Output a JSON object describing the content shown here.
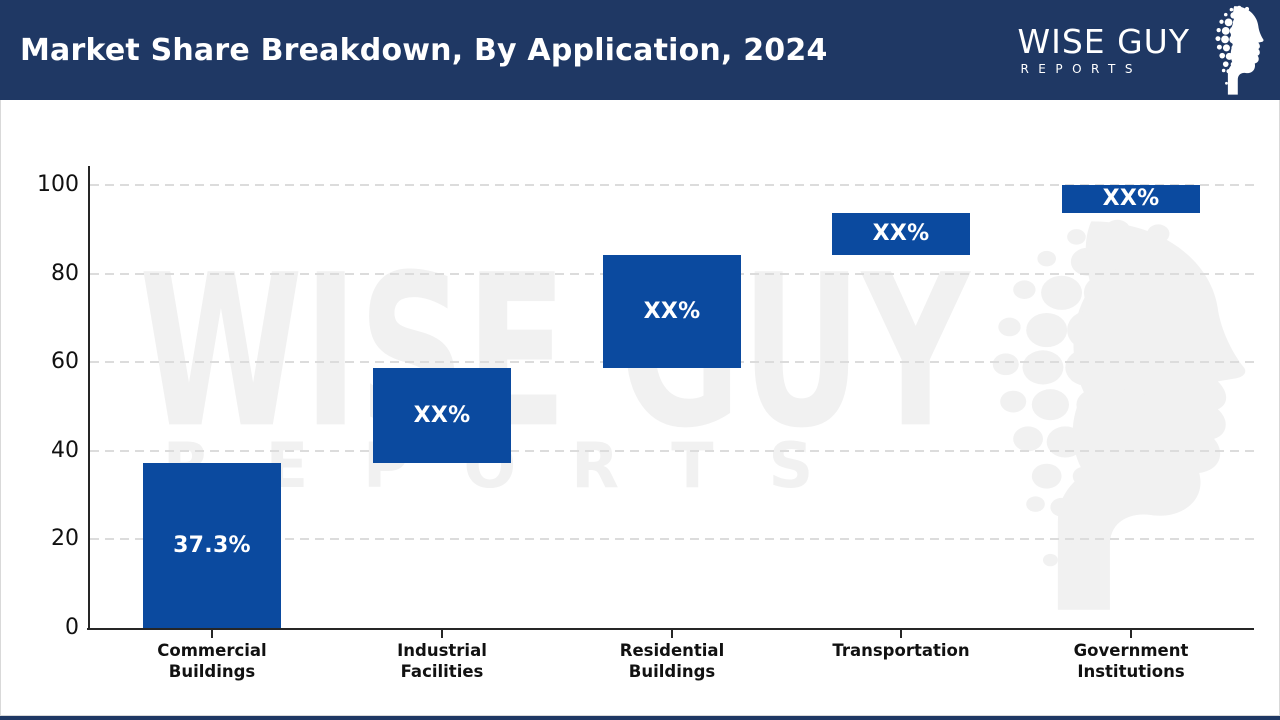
{
  "header": {
    "title": "Market Share Breakdown, By Application, 2024",
    "logo": {
      "wordmark": "WISE GUY",
      "sub": "REPORTS"
    }
  },
  "watermark": {
    "wordmark": "WISE GUY",
    "sub": "REPORTS"
  },
  "colors": {
    "header_bg": "#1f3864",
    "bar": "#0b4a9f",
    "bar_label": "#ffffff",
    "axis": "#262626",
    "grid": "#dcdcdc",
    "watermark": "#f1f1f1",
    "panel_border": "#d9d9d9"
  },
  "chart_data": {
    "type": "bar",
    "subtype": "floating-segment-waterfall",
    "title": "Market Share Breakdown, By Application, 2024",
    "categories": [
      "Commercial Buildings",
      "Industrial Facilities",
      "Residential Buildings",
      "Transportation",
      "Government Institutions"
    ],
    "categories_lines": [
      [
        "Commercial",
        "Buildings"
      ],
      [
        "Industrial",
        "Facilities"
      ],
      [
        "Residential",
        "Buildings"
      ],
      [
        "Transportation"
      ],
      [
        "Government",
        "Institutions"
      ]
    ],
    "segments": [
      {
        "category": "Commercial Buildings",
        "start": 0,
        "end": 37.3,
        "label": "37.3%"
      },
      {
        "category": "Industrial Facilities",
        "start": 37.3,
        "end": 58.8,
        "label": "XX%"
      },
      {
        "category": "Residential Buildings",
        "start": 58.8,
        "end": 84.2,
        "label": "XX%"
      },
      {
        "category": "Transportation",
        "start": 84.2,
        "end": 93.7,
        "label": "XX%"
      },
      {
        "category": "Government Institutions",
        "start": 93.7,
        "end": 100,
        "label": "XX%"
      }
    ],
    "xlabel": "",
    "ylabel": "",
    "yticks": [
      0,
      20,
      40,
      60,
      80,
      100
    ],
    "ylim": [
      0,
      104
    ],
    "grid": "horizontal-dashed",
    "legend": "none"
  }
}
